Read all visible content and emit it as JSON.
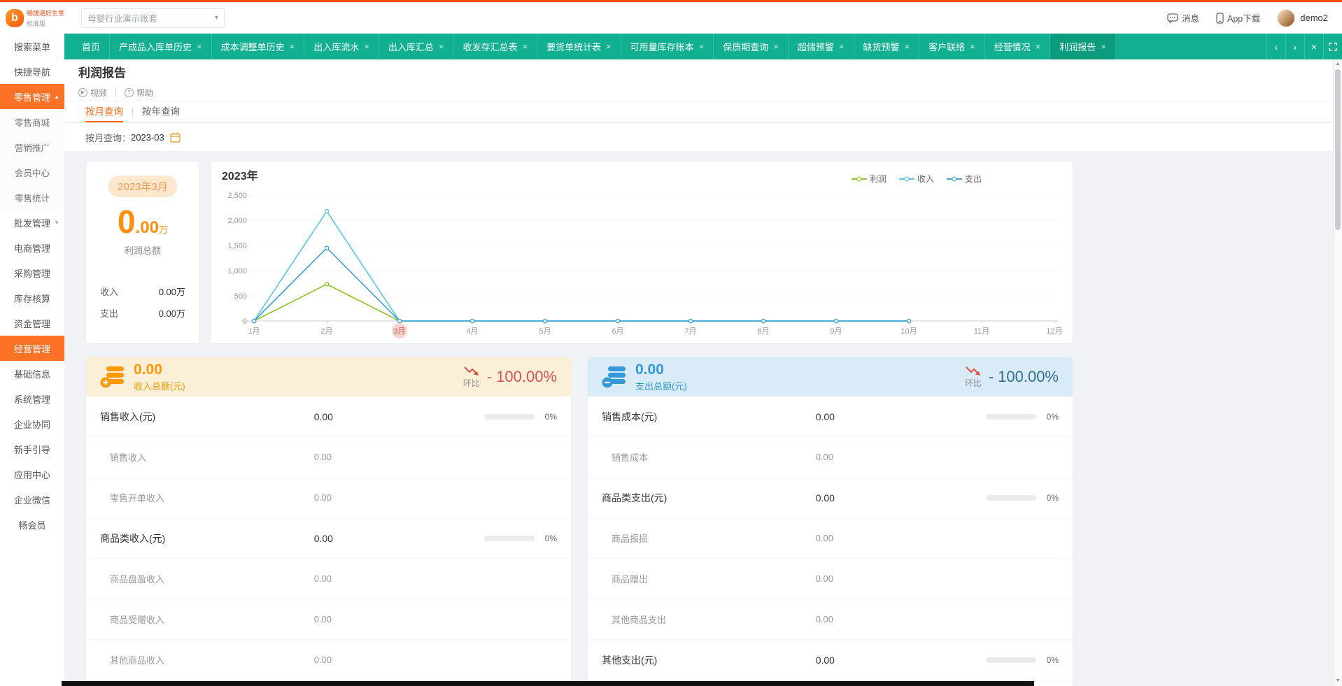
{
  "topbar": {
    "logo_glyph": "b",
    "logo_title": "畅捷通好生意",
    "logo_badge": "标准版",
    "account_select": "母婴行业演示账套",
    "messages_label": "消息",
    "app_download_label": "App下载",
    "username": "demo2"
  },
  "tabbar": {
    "tabs": [
      {
        "label": "首页",
        "closable": false,
        "active": false
      },
      {
        "label": "产成品入库单历史",
        "closable": true,
        "active": false
      },
      {
        "label": "成本调整单历史",
        "closable": true,
        "active": false
      },
      {
        "label": "出入库流水",
        "closable": true,
        "active": false
      },
      {
        "label": "出入库汇总",
        "closable": true,
        "active": false
      },
      {
        "label": "收发存汇总表",
        "closable": true,
        "active": false
      },
      {
        "label": "要货单统计表",
        "closable": true,
        "active": false
      },
      {
        "label": "可用量库存账本",
        "closable": true,
        "active": false
      },
      {
        "label": "保质期查询",
        "closable": true,
        "active": false
      },
      {
        "label": "超储预警",
        "closable": true,
        "active": false
      },
      {
        "label": "缺货预警",
        "closable": true,
        "active": false
      },
      {
        "label": "客户联络",
        "closable": true,
        "active": false
      },
      {
        "label": "经营情况",
        "closable": true,
        "active": false
      },
      {
        "label": "利润报告",
        "closable": true,
        "active": true
      }
    ]
  },
  "sidebar": {
    "items": [
      {
        "label": "搜索菜单",
        "type": "top"
      },
      {
        "label": "快捷导航",
        "type": "top"
      },
      {
        "label": "零售管理",
        "type": "group",
        "active": true,
        "caret": "up"
      },
      {
        "label": "零售商城",
        "type": "child"
      },
      {
        "label": "营销推广",
        "type": "child"
      },
      {
        "label": "会员中心",
        "type": "child"
      },
      {
        "label": "零售统计",
        "type": "child"
      },
      {
        "label": "批发管理",
        "type": "group",
        "caret": "down"
      },
      {
        "label": "电商管理",
        "type": "top"
      },
      {
        "label": "采购管理",
        "type": "top"
      },
      {
        "label": "库存核算",
        "type": "top"
      },
      {
        "label": "资金管理",
        "type": "top"
      },
      {
        "label": "经营管理",
        "type": "top",
        "active": true
      },
      {
        "label": "基础信息",
        "type": "top"
      },
      {
        "label": "系统管理",
        "type": "top"
      },
      {
        "label": "企业协同",
        "type": "top"
      },
      {
        "label": "新手引导",
        "type": "top"
      },
      {
        "label": "应用中心",
        "type": "top"
      },
      {
        "label": "企业微信",
        "type": "top"
      },
      {
        "label": "畅会员",
        "type": "top"
      }
    ]
  },
  "page": {
    "title": "利润报告",
    "video_label": "视频",
    "help_label": "帮助",
    "query_tabs": [
      {
        "label": "按月查询",
        "active": true
      },
      {
        "label": "按年查询",
        "active": false
      }
    ],
    "filter_label": "按月查询：",
    "filter_value": "2023-03"
  },
  "summary": {
    "period": "2023年3月",
    "total_int": "0",
    "total_dec": ".00",
    "total_unit": "万",
    "total_label": "利润总额",
    "rows": [
      {
        "label": "收入",
        "value": "0.00万"
      },
      {
        "label": "支出",
        "value": "0.00万"
      }
    ]
  },
  "chart_data": {
    "type": "line",
    "title": "2023年",
    "categories": [
      "1月",
      "2月",
      "3月",
      "4月",
      "5月",
      "6月",
      "7月",
      "8月",
      "9月",
      "10月",
      "11月",
      "12月"
    ],
    "selected_category": "3月",
    "selected_bg": "#f8d5d0",
    "selected_text": "#d9534f",
    "series": [
      {
        "name": "利润",
        "color": "#8fc31f",
        "values": [
          0,
          730,
          0,
          0,
          0,
          0,
          0,
          0,
          0,
          0,
          null,
          null
        ]
      },
      {
        "name": "收入",
        "color": "#5bc5e2",
        "values": [
          0,
          2180,
          0,
          0,
          0,
          0,
          0,
          0,
          0,
          0,
          null,
          null
        ]
      },
      {
        "name": "支出",
        "color": "#3f9fd8",
        "values": [
          0,
          1450,
          0,
          0,
          0,
          0,
          0,
          0,
          0,
          0,
          null,
          null
        ]
      }
    ],
    "ylim": [
      0,
      2500
    ],
    "yticks": [
      "0",
      "500",
      "1,000",
      "1,500",
      "2,000",
      "2,500"
    ],
    "legend_position": "top-right",
    "grid": false
  },
  "income_card": {
    "total": "0.00",
    "total_label": "收入总额(元)",
    "ratio_label": "环比",
    "ratio_value": "- 100.00%",
    "rows": [
      {
        "label": "销售收入(元)",
        "value": "0.00",
        "level": "parent",
        "bar": true,
        "pct": "0%"
      },
      {
        "label": "销售收入",
        "value": "0.00",
        "level": "child"
      },
      {
        "label": "零售开单收入",
        "value": "0.00",
        "level": "child"
      },
      {
        "label": "商品类收入(元)",
        "value": "0.00",
        "level": "parent",
        "bar": true,
        "pct": "0%"
      },
      {
        "label": "商品盘盈收入",
        "value": "0.00",
        "level": "child"
      },
      {
        "label": "商品受赠收入",
        "value": "0.00",
        "level": "child"
      },
      {
        "label": "其他商品收入",
        "value": "0.00",
        "level": "child"
      }
    ]
  },
  "expense_card": {
    "total": "0.00",
    "total_label": "支出总额(元)",
    "ratio_label": "环比",
    "ratio_value": "- 100.00%",
    "rows": [
      {
        "label": "销售成本(元)",
        "value": "0.00",
        "level": "parent",
        "bar": true,
        "pct": "0%"
      },
      {
        "label": "销售成本",
        "value": "0.00",
        "level": "child"
      },
      {
        "label": "商品类支出(元)",
        "value": "0.00",
        "level": "parent",
        "bar": true,
        "pct": "0%"
      },
      {
        "label": "商品报损",
        "value": "0.00",
        "level": "child"
      },
      {
        "label": "商品赠出",
        "value": "0.00",
        "level": "child"
      },
      {
        "label": "其他商品支出",
        "value": "0.00",
        "level": "child"
      },
      {
        "label": "其他支出(元)",
        "value": "0.00",
        "level": "parent",
        "bar": true,
        "pct": "0%"
      }
    ]
  },
  "icons": {
    "close": "×",
    "prev": "‹",
    "next": "›",
    "caret_up": "▲",
    "caret_down": "▼",
    "chevron_down": "▾",
    "scroll_up": "▲",
    "scroll_down": "▼",
    "play": "▶",
    "question": "?"
  },
  "colors": {
    "top_strip": "#ff4e00",
    "tab_bar": "#10b091",
    "tab_active": "#0a9c7d",
    "sidebar_active": "#fd7226",
    "accent_orange": "#ff8e0d",
    "income_header_bg": "#fbf0d7",
    "income_accent": "#ff9900",
    "income_ratio": "#d9534f",
    "expense_header_bg": "#d8ebf7",
    "expense_accent": "#3599d8",
    "expense_ratio": "#31708f",
    "trend_icon": "#e0503c"
  }
}
